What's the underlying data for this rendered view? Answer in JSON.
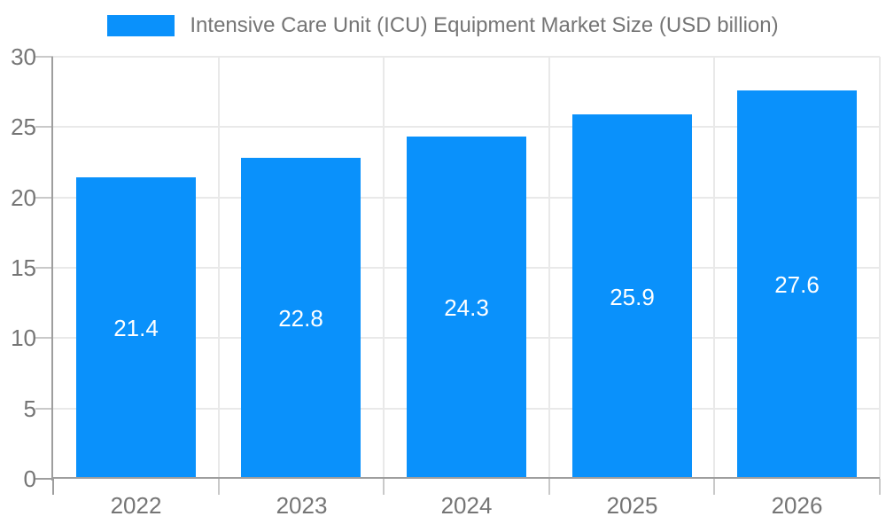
{
  "legend": {
    "label": "Intensive Care Unit (ICU) Equipment Market Size (USD billion)"
  },
  "colors": {
    "bar": "#0a91fb",
    "grid": "#e9e9e9",
    "axis": "#9e9e9e",
    "tick": "#c9c9c9",
    "text": "#757575",
    "value_label": "#ffffff"
  },
  "chart_data": {
    "type": "bar",
    "title": "Intensive Care Unit (ICU) Equipment Market Size (USD billion)",
    "categories": [
      "2022",
      "2023",
      "2024",
      "2025",
      "2026"
    ],
    "values": [
      21.4,
      22.8,
      24.3,
      25.9,
      27.6
    ],
    "value_labels": [
      "21.4",
      "22.8",
      "24.3",
      "25.9",
      "27.6"
    ],
    "xlabel": "",
    "ylabel": "",
    "ylim": [
      0,
      30
    ],
    "yticks": [
      0,
      5,
      10,
      15,
      20,
      25,
      30
    ],
    "ytick_labels": [
      "0",
      "5",
      "10",
      "15",
      "20",
      "25",
      "30"
    ],
    "grid": true,
    "legend_position": "top",
    "value_label_position": "center-of-bar"
  }
}
